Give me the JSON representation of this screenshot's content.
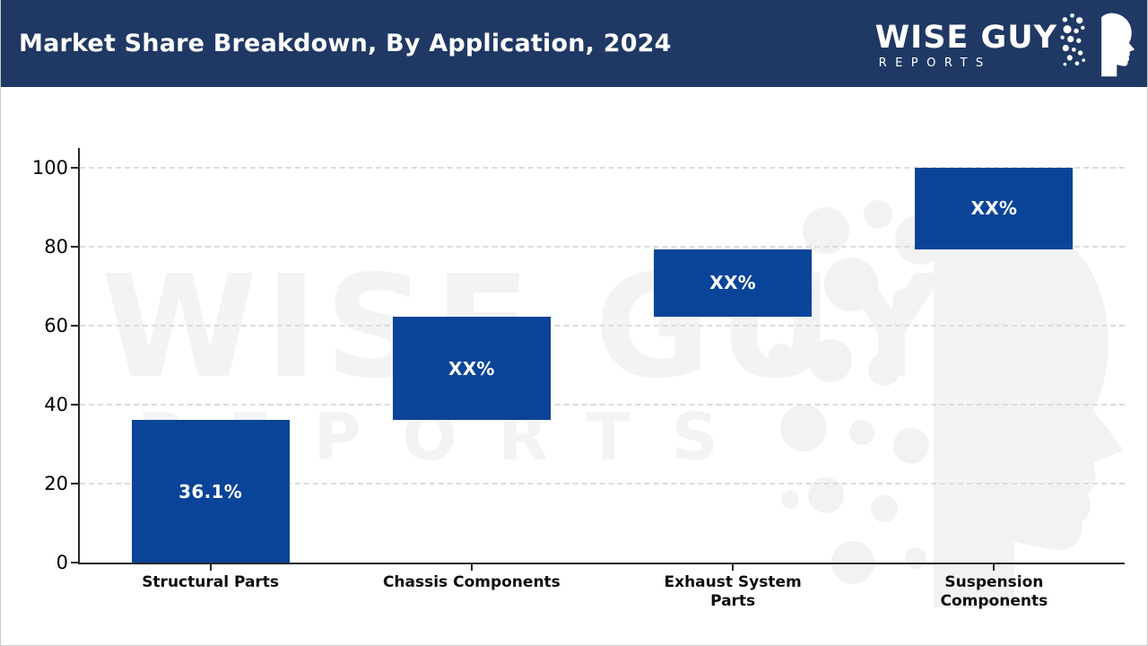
{
  "header": {
    "bg_color": "#1f3864",
    "title": "Market Share Breakdown, By Application, 2024",
    "logo": {
      "name": "WISE GUY",
      "sub": "REPORTS"
    }
  },
  "watermark": {
    "line1": "WISE GUY",
    "line2": "REPORTS"
  },
  "chart_data": {
    "type": "bar",
    "variant": "floating-waterfall",
    "title": "Market Share Breakdown, By Application, 2024",
    "categories": [
      "Structural Parts",
      "Chassis Components",
      "Exhaust System\nParts",
      "Suspension\nComponents"
    ],
    "series": [
      {
        "name": "Market share (%)",
        "segments": [
          {
            "category": "Structural Parts",
            "start": 0,
            "end": 36.1,
            "label": "36.1%"
          },
          {
            "category": "Chassis Components",
            "start": 36.1,
            "end": 62.3,
            "label": "XX%"
          },
          {
            "category": "Exhaust System Parts",
            "start": 62.3,
            "end": 79.4,
            "label": "XX%"
          },
          {
            "category": "Suspension Components",
            "start": 79.4,
            "end": 100,
            "label": "XX%"
          }
        ]
      }
    ],
    "y_ticks": [
      0,
      20,
      40,
      60,
      80,
      100
    ],
    "ylim": [
      0,
      105
    ],
    "xlabel": "",
    "ylabel": "",
    "grid": "horizontal-dashed",
    "legend": "none",
    "bar_color": "#0a4499",
    "bar_label_color": "#ffffff",
    "axis_color": "#262626",
    "gridline_color": "#dcdcdc"
  }
}
